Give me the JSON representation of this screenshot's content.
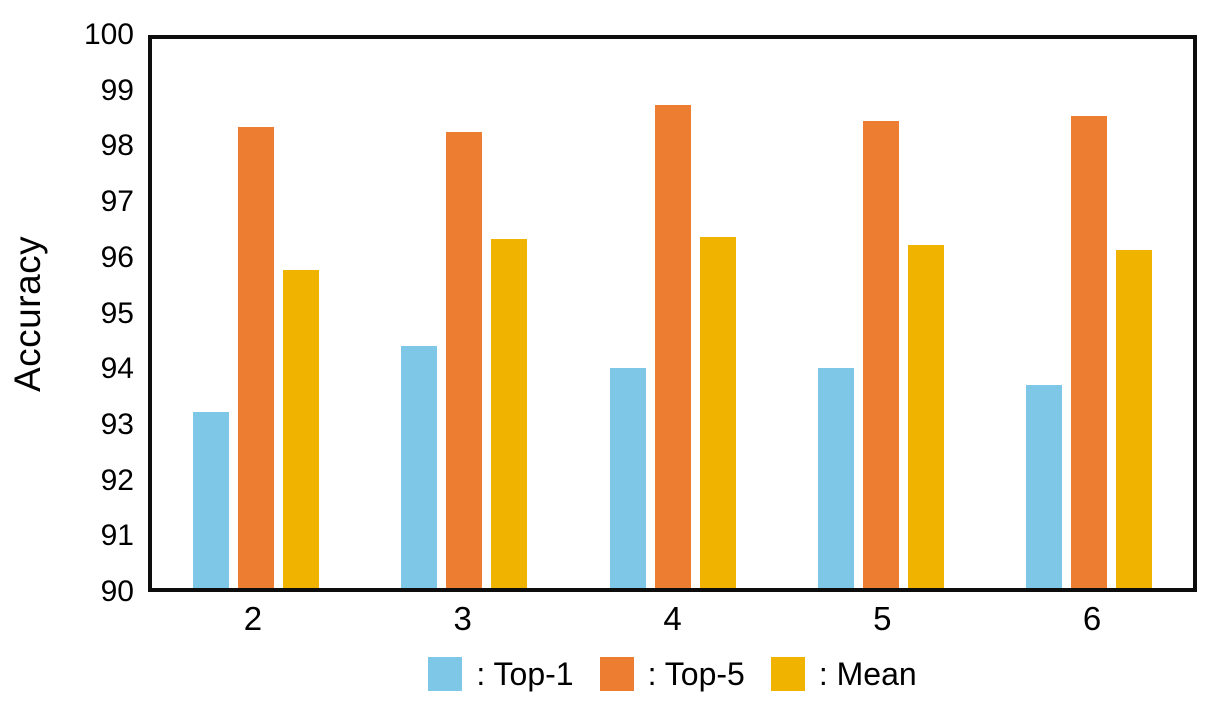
{
  "chart_data": {
    "type": "bar",
    "title": "",
    "xlabel": "",
    "ylabel": "Accuracy",
    "ylim": [
      90,
      100
    ],
    "y_ticks": [
      100,
      99,
      98,
      97,
      96,
      95,
      94,
      93,
      92,
      91,
      90
    ],
    "categories": [
      "2",
      "3",
      "4",
      "5",
      "6"
    ],
    "series": [
      {
        "name": "Top-1",
        "legend_label": ": Top-1",
        "color": "#7EC7E6",
        "values": [
          93.2,
          94.4,
          94.0,
          94.0,
          93.7
        ]
      },
      {
        "name": "Top-5",
        "legend_label": ": Top-5",
        "color": "#ED7D31",
        "values": [
          98.4,
          98.3,
          98.8,
          98.5,
          98.6
        ]
      },
      {
        "name": "Mean",
        "legend_label": ": Mean",
        "color": "#F0B400",
        "values": [
          95.8,
          96.35,
          96.4,
          96.25,
          96.15
        ]
      }
    ],
    "legend_position": "bottom",
    "grid": false
  },
  "colors": {
    "background": "#FFFFFF",
    "axis_border": "#0D0D0D",
    "text": "#000000"
  }
}
